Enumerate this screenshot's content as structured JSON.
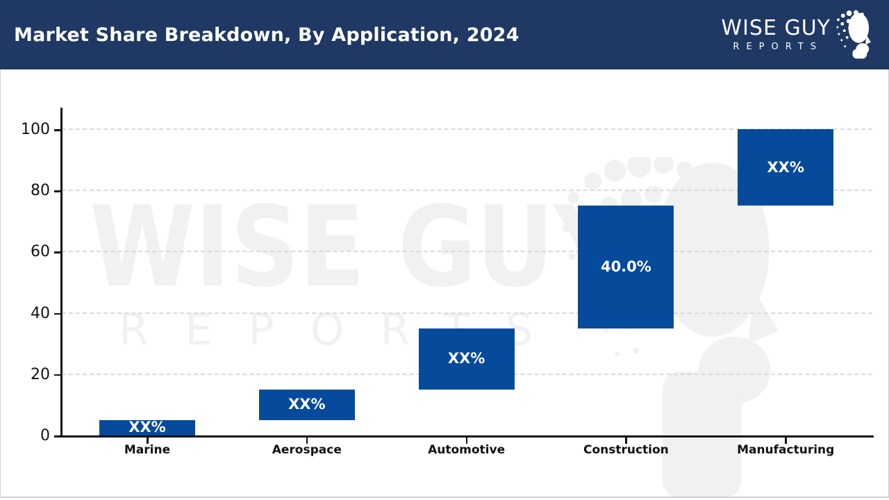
{
  "header": {
    "title": "Market Share Breakdown, By Application, 2024",
    "logo": {
      "line1": "WISE GUY",
      "line2": "REPORTS",
      "icon": "face-dots-icon"
    }
  },
  "watermark": {
    "line1": "WISE GUY",
    "line2": "REPORTS"
  },
  "chart_data": {
    "type": "bar",
    "subtype": "waterfall",
    "title": "Market Share Breakdown, By Application, 2024",
    "categories": [
      "Marine",
      "Aerospace",
      "Automotive",
      "Construction",
      "Manufacturing"
    ],
    "segments": [
      {
        "category": "Marine",
        "start": 0,
        "end": 5,
        "value": 5,
        "label": "XX%"
      },
      {
        "category": "Aerospace",
        "start": 5,
        "end": 15,
        "value": 10,
        "label": "XX%"
      },
      {
        "category": "Automotive",
        "start": 15,
        "end": 35,
        "value": 20,
        "label": "XX%"
      },
      {
        "category": "Construction",
        "start": 35,
        "end": 75,
        "value": 40,
        "label": "40.0%"
      },
      {
        "category": "Manufacturing",
        "start": 75,
        "end": 100,
        "value": 25,
        "label": "XX%"
      }
    ],
    "xlabel": "",
    "ylabel": "",
    "ylim": [
      0,
      100
    ],
    "yticks": [
      0,
      20,
      40,
      60,
      80,
      100
    ],
    "grid": "horizontal-dashed",
    "legend": "none"
  },
  "colors": {
    "header_bg": "#1f3864",
    "header_text": "#ffffff",
    "bar": "#064a9c",
    "bar_label": "#ffffff",
    "axis": "#111111",
    "tick_label": "#111111",
    "gridline": "#d9d9d9",
    "watermark": "#f1f1f1",
    "border": "#cfcfcf"
  }
}
